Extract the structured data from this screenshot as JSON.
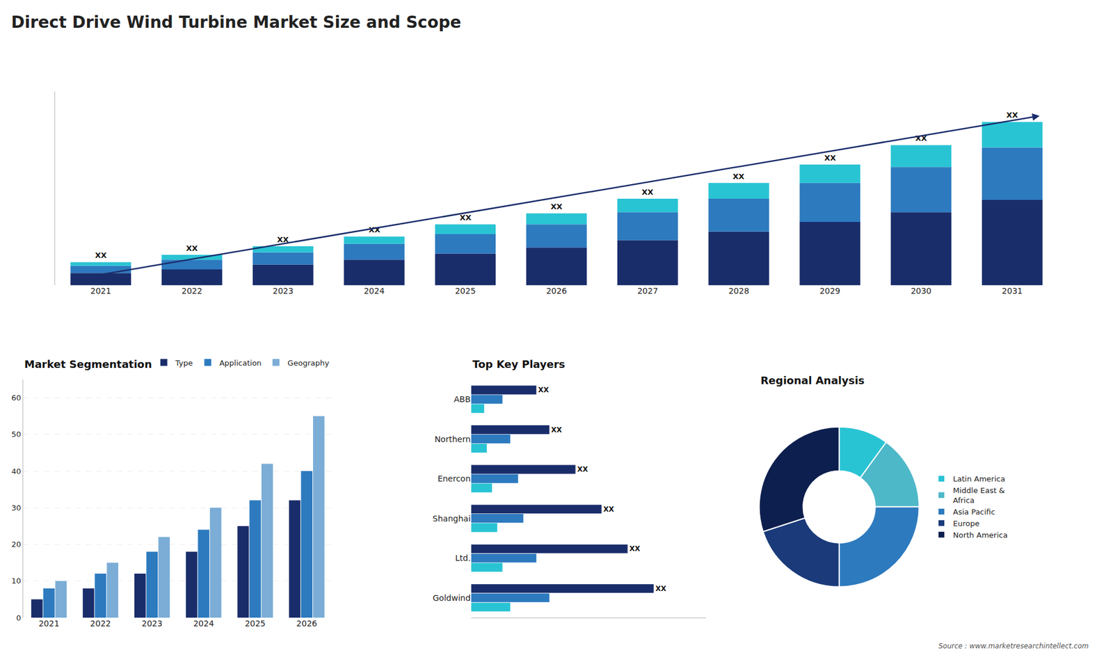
{
  "title": "Direct Drive Wind Turbine Market Size and Scope",
  "annotations": [
    "Source : www.marketresearchintellect.com"
  ],
  "chart_data": [
    {
      "type": "bar",
      "stacked": true,
      "categories": [
        "2021",
        "2022",
        "2023",
        "2024",
        "2025",
        "2026",
        "2027",
        "2028",
        "2029",
        "2030",
        "2031"
      ],
      "series": [
        {
          "color": "#1a2d6b",
          "values": [
            1,
            1.3,
            1.7,
            2.1,
            2.6,
            3.1,
            3.7,
            4.4,
            5.2,
            6.0,
            7.0
          ]
        },
        {
          "color": "#2d7abf",
          "values": [
            0.6,
            0.8,
            1.0,
            1.3,
            1.6,
            1.9,
            2.3,
            2.7,
            3.2,
            3.7,
            4.3
          ]
        },
        {
          "color": "#29c4d4",
          "values": [
            0.3,
            0.4,
            0.5,
            0.6,
            0.8,
            0.9,
            1.1,
            1.3,
            1.5,
            1.8,
            2.1
          ]
        }
      ],
      "annotations": [
        "XX",
        "XX",
        "XX",
        "XX",
        "XX",
        "XX",
        "XX",
        "XX",
        "XX",
        "XX",
        "XX"
      ],
      "ylim": [
        0,
        15.9
      ],
      "tick_labels": "x",
      "grid": false
    },
    {
      "type": "bar",
      "title": "Market Segmentation",
      "categories": [
        "2021",
        "2022",
        "2023",
        "2024",
        "2025",
        "2026"
      ],
      "series": [
        {
          "name": "Type",
          "color": "#1a2d6b",
          "values": [
            5,
            8,
            12,
            18,
            25,
            32
          ]
        },
        {
          "name": "Application",
          "color": "#2d7abf",
          "values": [
            8,
            12,
            18,
            24,
            32,
            40
          ]
        },
        {
          "name": "Geography",
          "color": "#7badd6",
          "values": [
            10,
            15,
            22,
            30,
            42,
            55
          ]
        }
      ],
      "ylim": [
        0,
        65
      ],
      "yticks": [
        0,
        10,
        20,
        30,
        40,
        50,
        60
      ],
      "grid": true,
      "legend": "upper right"
    },
    {
      "type": "bar",
      "orientation": "horizontal",
      "title": "Top Key Players",
      "categories": [
        "Goldwind",
        "Ltd.",
        "Shanghai",
        "Enercon",
        "Northern",
        "ABB"
      ],
      "series": [
        {
          "color": "#1a2d6b",
          "values": [
            7,
            6,
            5,
            4,
            3,
            2.5
          ],
          "value_labels": [
            "XX",
            "XX",
            "XX",
            "XX",
            "XX",
            "XX"
          ]
        },
        {
          "color": "#2d7abf",
          "values": [
            3,
            2.5,
            2,
            1.8,
            1.5,
            1.2
          ]
        },
        {
          "color": "#29c4d4",
          "values": [
            1.5,
            1.2,
            1.0,
            0.8,
            0.6,
            0.5
          ]
        }
      ],
      "xlim": [
        0,
        9
      ],
      "tick_labels": "y",
      "grid": false
    },
    {
      "type": "pie",
      "title": "Regional Analysis",
      "categories": [
        "Latin America",
        "Middle East &\nAfrica",
        "Asia Pacific",
        "Europe",
        "North America"
      ],
      "values": [
        10,
        15,
        25,
        20,
        30
      ],
      "colors": [
        "#29c4d4",
        "#4db8c8",
        "#2d7abf",
        "#1a3a7a",
        "#0d1f4e"
      ],
      "legend": "right"
    }
  ]
}
